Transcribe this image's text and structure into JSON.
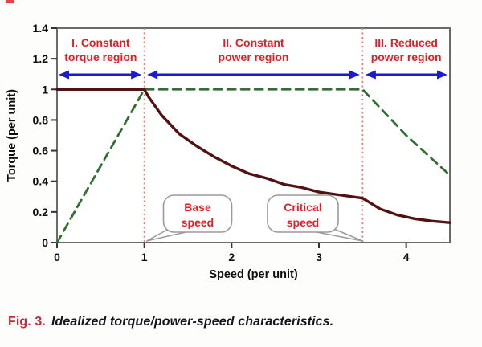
{
  "caption": {
    "label": "Fig. 3.",
    "text": "Idealized torque/power-speed characteristics."
  },
  "colors": {
    "region_label": "#e21f26",
    "arrow": "#1c1ad1",
    "torque_line": "#551111",
    "power_line": "#2e7031",
    "boundary_line": "#e87c64",
    "plot_border": "#6b6b6b",
    "axis_text": "#0d0d0d",
    "tick_mark": "#333333",
    "callout_border": "#9a9a9a",
    "callout_text": "#e21f26",
    "plot_fill": "#ffffff"
  },
  "chart_data": {
    "type": "line",
    "title": "",
    "xlabel": "Speed (per unit)",
    "ylabel": "Torque (per unit)",
    "xlim": [
      0,
      4.5
    ],
    "ylim": [
      0,
      1.4
    ],
    "xticks": [
      0,
      1,
      2,
      3,
      4
    ],
    "xtick_labels": [
      "0",
      "1",
      "2",
      "3",
      "4"
    ],
    "yticks": [
      0,
      0.2,
      0.4,
      0.6,
      0.8,
      1,
      1.2,
      1.4
    ],
    "ytick_labels": [
      "0",
      "0.2",
      "0.4",
      "0.6",
      "0.8",
      "1",
      "1.2",
      "1.4"
    ],
    "grid": false,
    "legend": "none",
    "series": [
      {
        "name": "power",
        "style": "dashed",
        "x": [
          0,
          1,
          3.5,
          4,
          4.5
        ],
        "y": [
          0,
          1,
          1,
          0.7,
          0.44
        ]
      },
      {
        "name": "torque",
        "style": "solid",
        "x": [
          0,
          1,
          1.05,
          1.1,
          1.2,
          1.3,
          1.4,
          1.6,
          1.8,
          2,
          2.2,
          2.4,
          2.6,
          2.8,
          3,
          3.25,
          3.5,
          3.7,
          3.9,
          4.1,
          4.3,
          4.5
        ],
        "y": [
          1,
          1,
          0.95,
          0.91,
          0.83,
          0.77,
          0.71,
          0.63,
          0.56,
          0.5,
          0.45,
          0.42,
          0.38,
          0.36,
          0.33,
          0.31,
          0.29,
          0.22,
          0.18,
          0.155,
          0.14,
          0.13
        ]
      }
    ],
    "boundaries": [
      1,
      3.5
    ],
    "regions": [
      {
        "label_line1": "I. Constant",
        "label_line2": "torque region",
        "from": 0,
        "to": 1
      },
      {
        "label_line1": "II. Constant",
        "label_line2": "power region",
        "from": 1,
        "to": 3.5
      },
      {
        "label_line1": "III. Reduced",
        "label_line2": "power region",
        "from": 3.5,
        "to": 4.5
      }
    ],
    "annotations": [
      {
        "line1": "Base",
        "line2": "speed",
        "points_to_x": 1
      },
      {
        "line1": "Critical",
        "line2": "speed",
        "points_to_x": 3.5
      }
    ]
  }
}
